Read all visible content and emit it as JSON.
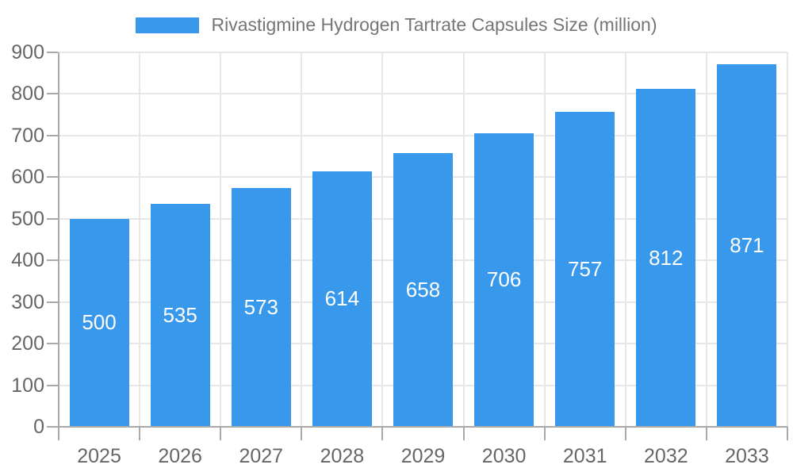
{
  "legend": {
    "label": "Rivastigmine Hydrogen Tartrate Capsules Size (million)"
  },
  "chart_data": {
    "type": "bar",
    "title": "Rivastigmine Hydrogen Tartrate Capsules Size (million)",
    "categories": [
      "2025",
      "2026",
      "2027",
      "2028",
      "2029",
      "2030",
      "2031",
      "2032",
      "2033"
    ],
    "values": [
      500,
      535,
      573,
      614,
      658,
      706,
      757,
      812,
      871
    ],
    "xlabel": "",
    "ylabel": "",
    "ylim": [
      0,
      900
    ],
    "yticks": [
      0,
      100,
      200,
      300,
      400,
      500,
      600,
      700,
      800,
      900
    ],
    "grid": true,
    "legend_position": "top",
    "value_labels": "centered-white-inside-bars",
    "colors": {
      "bar": "#3898ec",
      "grid": "#e7e7e7",
      "axis": "#a9a9a9",
      "tick_label": "#666666",
      "legend_text": "#757575",
      "value_label": "#ffffff",
      "background": "#ffffff"
    }
  }
}
